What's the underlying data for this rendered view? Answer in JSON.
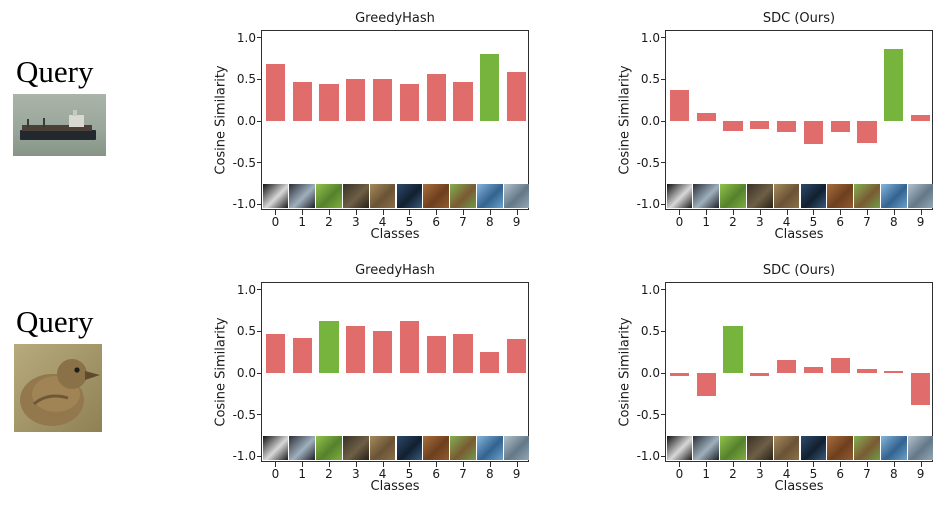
{
  "queries": [
    {
      "label": "Query",
      "image": "ship-photo"
    },
    {
      "label": "Query",
      "image": "bird-photo"
    }
  ],
  "style": {
    "bar_color": "#e06c6c",
    "highlight_color": "#77b43e",
    "axis_color": "#2e2e2e"
  },
  "class_thumbnails": [
    {
      "name": "airplane",
      "c1": "#111111",
      "c2": "#d8d8d8",
      "c3": "#1c1c1c"
    },
    {
      "name": "automobile",
      "c1": "#2a2f38",
      "c2": "#9fb0bd",
      "c3": "#1d2128"
    },
    {
      "name": "bird",
      "c1": "#93c24c",
      "c2": "#55812c",
      "c3": "#7fae3f"
    },
    {
      "name": "cat",
      "c1": "#393226",
      "c2": "#6e5f46",
      "c3": "#262117"
    },
    {
      "name": "deer",
      "c1": "#a78a5c",
      "c2": "#6a5336",
      "c3": "#8a7048"
    },
    {
      "name": "dog",
      "c1": "#2c4a6b",
      "c2": "#122030",
      "c3": "#3a5a7d"
    },
    {
      "name": "frog",
      "c1": "#a86e3e",
      "c2": "#6e3f1e",
      "c3": "#8f5a30"
    },
    {
      "name": "horse",
      "c1": "#83b052",
      "c2": "#7a5a33",
      "c3": "#6f9c46"
    },
    {
      "name": "ship",
      "c1": "#85b6dc",
      "c2": "#33628f",
      "c3": "#6aa2cc"
    },
    {
      "name": "truck",
      "c1": "#b3c2cc",
      "c2": "#637888",
      "c3": "#93a7b3"
    }
  ],
  "chart_data": [
    {
      "type": "bar",
      "title": "GreedyHash",
      "xlabel": "Classes",
      "ylabel": "Cosine Similarity",
      "categories": [
        "0",
        "1",
        "2",
        "3",
        "4",
        "5",
        "6",
        "7",
        "8",
        "9"
      ],
      "values": [
        0.68,
        0.47,
        0.45,
        0.5,
        0.51,
        0.44,
        0.56,
        0.47,
        0.81,
        0.59
      ],
      "highlight_index": 8,
      "ylim": [
        -1.0,
        1.0
      ],
      "yticks": [
        1.0,
        0.5,
        0.0,
        -0.5,
        -1.0
      ],
      "ytick_labels": [
        "1.0",
        "0.5",
        "0.0",
        "-0.5",
        "-1.0"
      ],
      "grid": false,
      "legend": "none"
    },
    {
      "type": "bar",
      "title": "SDC (Ours)",
      "xlabel": "Classes",
      "ylabel": "Cosine Similarity",
      "categories": [
        "0",
        "1",
        "2",
        "3",
        "4",
        "5",
        "6",
        "7",
        "8",
        "9"
      ],
      "values": [
        0.37,
        0.1,
        -0.12,
        -0.1,
        -0.13,
        -0.28,
        -0.13,
        -0.26,
        0.87,
        0.07
      ],
      "highlight_index": 8,
      "ylim": [
        -1.0,
        1.0
      ],
      "yticks": [
        1.0,
        0.5,
        0.0,
        -0.5,
        -1.0
      ],
      "ytick_labels": [
        "1.0",
        "0.5",
        "0.0",
        "-0.5",
        "-1.0"
      ],
      "grid": false,
      "legend": "none"
    },
    {
      "type": "bar",
      "title": "GreedyHash",
      "xlabel": "Classes",
      "ylabel": "Cosine Similarity",
      "categories": [
        "0",
        "1",
        "2",
        "3",
        "4",
        "5",
        "6",
        "7",
        "8",
        "9"
      ],
      "values": [
        0.47,
        0.42,
        0.63,
        0.57,
        0.51,
        0.63,
        0.44,
        0.47,
        0.25,
        0.41
      ],
      "highlight_index": 2,
      "ylim": [
        -1.0,
        1.0
      ],
      "yticks": [
        1.0,
        0.5,
        0.0,
        -0.5,
        -1.0
      ],
      "ytick_labels": [
        "1.0",
        "0.5",
        "0.0",
        "-0.5",
        "-1.0"
      ],
      "grid": false,
      "legend": "none"
    },
    {
      "type": "bar",
      "title": "SDC (Ours)",
      "xlabel": "Classes",
      "ylabel": "Cosine Similarity",
      "categories": [
        "0",
        "1",
        "2",
        "3",
        "4",
        "5",
        "6",
        "7",
        "8",
        "9"
      ],
      "values": [
        -0.04,
        -0.28,
        0.56,
        -0.03,
        0.16,
        0.07,
        0.18,
        0.05,
        0.03,
        -0.38
      ],
      "highlight_index": 2,
      "ylim": [
        -1.0,
        1.0
      ],
      "yticks": [
        1.0,
        0.5,
        0.0,
        -0.5,
        -1.0
      ],
      "ytick_labels": [
        "1.0",
        "0.5",
        "0.0",
        "-0.5",
        "-1.0"
      ],
      "grid": false,
      "legend": "none"
    }
  ]
}
